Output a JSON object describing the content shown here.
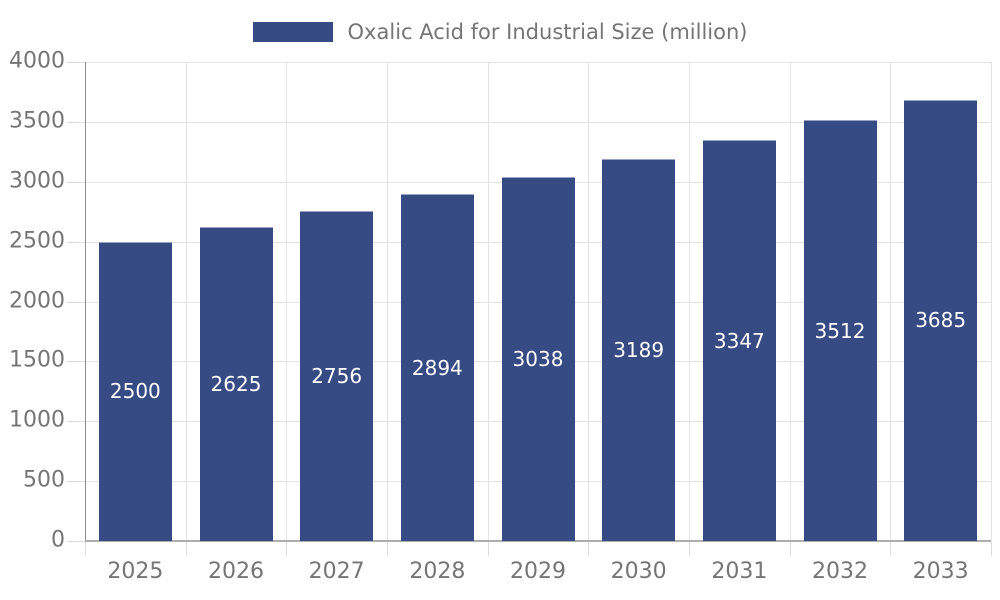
{
  "chart_data": {
    "type": "bar",
    "series_name": "Oxalic Acid for Industrial Size (million)",
    "categories": [
      "2025",
      "2026",
      "2027",
      "2028",
      "2029",
      "2030",
      "2031",
      "2032",
      "2033"
    ],
    "values": [
      2500,
      2625,
      2756,
      2894,
      3038,
      3189,
      3347,
      3512,
      3685
    ],
    "value_labels_shown": true,
    "title": "",
    "xlabel": "",
    "ylabel": "",
    "ylim": [
      0,
      4000
    ],
    "yticks": [
      0,
      500,
      1000,
      1500,
      2000,
      2500,
      3000,
      3500,
      4000
    ],
    "grid": true,
    "legend_position": "top-center",
    "colors": {
      "bar": "#364A84",
      "value_label": "#FFFFFF",
      "tick_label": "#757575",
      "legend_text": "#757575",
      "gridline": "#E3E3E3",
      "y_axis_line": "#8C8C8C",
      "x_axis_line": "#ADADAD",
      "tick_mark": "#DCDCDC",
      "background": "#FFFFFF"
    }
  }
}
